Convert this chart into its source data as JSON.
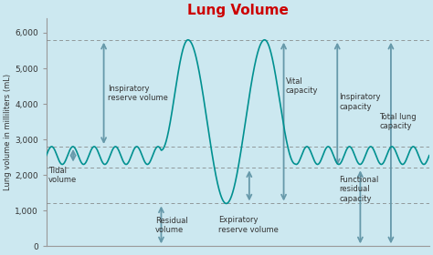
{
  "title": "Lung Volume",
  "title_color": "#cc0000",
  "ylabel": "Lung volume in milliliters (mL)",
  "bg_color": "#cce8f0",
  "outer_bg": "#f0f0f0",
  "line_color": "#009090",
  "arrow_color": "#6699aa",
  "dashed_color": "#777777",
  "ylim": [
    0,
    6400
  ],
  "yticks": [
    0,
    1000,
    2000,
    3000,
    4000,
    5000,
    6000
  ],
  "ytick_labels": [
    "0",
    "1,000",
    "2,000",
    "3,000",
    "4,000",
    "5,000",
    "6,000"
  ],
  "rv": 1200,
  "frc": 2200,
  "tid_mid": 2550,
  "tid_amp": 250,
  "tlc": 5800,
  "dashed_lines": [
    5800,
    2800,
    2200,
    1200
  ]
}
